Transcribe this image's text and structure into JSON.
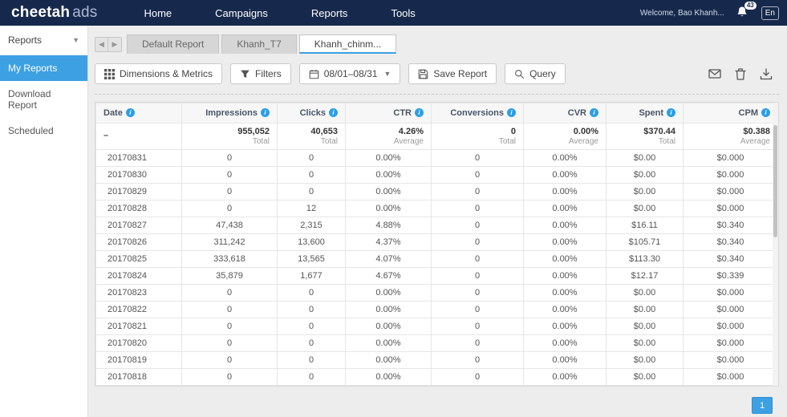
{
  "topbar": {
    "brand_bold": "cheetah",
    "brand_light": "ads",
    "nav": [
      "Home",
      "Campaigns",
      "Reports",
      "Tools"
    ],
    "welcome": "Welcome,",
    "username": "Bao Khanh...",
    "notification_badge": "43",
    "language": "En",
    "icons": [
      "bell-icon"
    ]
  },
  "sidebar": {
    "section_label": "Reports",
    "items": [
      {
        "label": "My Reports",
        "active": true
      },
      {
        "label": "Download Report",
        "active": false
      },
      {
        "label": "Scheduled",
        "active": false
      }
    ]
  },
  "tabbar": {
    "tabs": [
      {
        "label": "Default Report",
        "active": false
      },
      {
        "label": "Khanh_T7",
        "active": false
      },
      {
        "label": "Khanh_chinm...",
        "active": true
      }
    ]
  },
  "toolbar": {
    "dimensions_metrics_label": "Dimensions & Metrics",
    "filters_label": "Filters",
    "date_range_label": "08/01–08/31",
    "save_report_label": "Save Report",
    "query_label": "Query",
    "right_icons": [
      "mail-icon",
      "trash-icon",
      "download-icon"
    ]
  },
  "table": {
    "columns": [
      "Date",
      "Impressions",
      "Clicks",
      "CTR",
      "Conversions",
      "CVR",
      "Spent",
      "CPM"
    ],
    "summary": {
      "date": "–",
      "values": [
        "955,052",
        "40,653",
        "4.26%",
        "0",
        "0.00%",
        "$370.44",
        "$0.388"
      ],
      "sublabels": [
        "Total",
        "Total",
        "Average",
        "Total",
        "Average",
        "Total",
        "Average"
      ]
    },
    "rows": [
      [
        "20170831",
        "0",
        "0",
        "0.00%",
        "0",
        "0.00%",
        "$0.00",
        "$0.000"
      ],
      [
        "20170830",
        "0",
        "0",
        "0.00%",
        "0",
        "0.00%",
        "$0.00",
        "$0.000"
      ],
      [
        "20170829",
        "0",
        "0",
        "0.00%",
        "0",
        "0.00%",
        "$0.00",
        "$0.000"
      ],
      [
        "20170828",
        "0",
        "12",
        "0.00%",
        "0",
        "0.00%",
        "$0.00",
        "$0.000"
      ],
      [
        "20170827",
        "47,438",
        "2,315",
        "4.88%",
        "0",
        "0.00%",
        "$16.11",
        "$0.340"
      ],
      [
        "20170826",
        "311,242",
        "13,600",
        "4.37%",
        "0",
        "0.00%",
        "$105.71",
        "$0.340"
      ],
      [
        "20170825",
        "333,618",
        "13,565",
        "4.07%",
        "0",
        "0.00%",
        "$113.30",
        "$0.340"
      ],
      [
        "20170824",
        "35,879",
        "1,677",
        "4.67%",
        "0",
        "0.00%",
        "$12.17",
        "$0.339"
      ],
      [
        "20170823",
        "0",
        "0",
        "0.00%",
        "0",
        "0.00%",
        "$0.00",
        "$0.000"
      ],
      [
        "20170822",
        "0",
        "0",
        "0.00%",
        "0",
        "0.00%",
        "$0.00",
        "$0.000"
      ],
      [
        "20170821",
        "0",
        "0",
        "0.00%",
        "0",
        "0.00%",
        "$0.00",
        "$0.000"
      ],
      [
        "20170820",
        "0",
        "0",
        "0.00%",
        "0",
        "0.00%",
        "$0.00",
        "$0.000"
      ],
      [
        "20170819",
        "0",
        "0",
        "0.00%",
        "0",
        "0.00%",
        "$0.00",
        "$0.000"
      ],
      [
        "20170818",
        "0",
        "0",
        "0.00%",
        "0",
        "0.00%",
        "$0.00",
        "$0.000"
      ]
    ]
  },
  "pagination": {
    "current_page": "1"
  },
  "colors": {
    "accent": "#3da0e3",
    "topbar": "#16294d",
    "info_icon": "#2b9fe8"
  }
}
